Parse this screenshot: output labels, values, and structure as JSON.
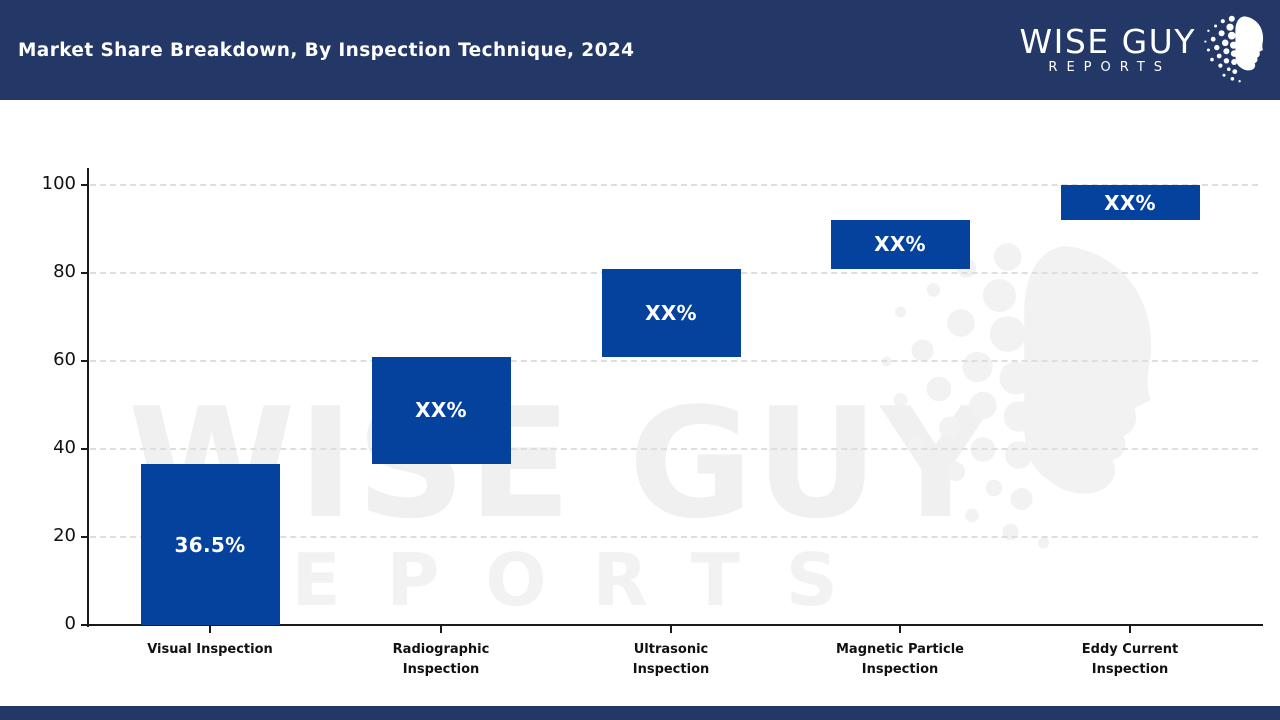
{
  "header": {
    "title": "Market Share Breakdown, By Inspection Technique, 2024",
    "logo": {
      "line1": "WISE GUY",
      "line2": "REPORTS"
    }
  },
  "watermark": {
    "line1": "WISE GUY",
    "line2": "REPORTS"
  },
  "chart_data": {
    "type": "bar",
    "subtype": "waterfall",
    "title": "Market Share Breakdown, By Inspection Technique, 2024",
    "categories": [
      "Visual Inspection",
      "Radiographic Inspection",
      "Ultrasonic Inspection",
      "Magnetic Particle Inspection",
      "Eddy Current Inspection"
    ],
    "segments": [
      {
        "label": "Visual Inspection",
        "start": 0,
        "end": 36.5,
        "value": 36.5,
        "value_label": "36.5%"
      },
      {
        "label": "Radiographic\nInspection",
        "start": 36.5,
        "end": 61,
        "value": 24.5,
        "value_label": "XX%"
      },
      {
        "label": "Ultrasonic\nInspection",
        "start": 61,
        "end": 81,
        "value": 20,
        "value_label": "XX%"
      },
      {
        "label": "Magnetic Particle\nInspection",
        "start": 81,
        "end": 92,
        "value": 11,
        "value_label": "XX%"
      },
      {
        "label": "Eddy Current\nInspection",
        "start": 92,
        "end": 100,
        "value": 8,
        "value_label": "XX%"
      }
    ],
    "yticks": [
      0,
      20,
      40,
      60,
      80,
      100
    ],
    "ylim": [
      0,
      104
    ],
    "xlabel": "",
    "ylabel": "",
    "grid": "dashed-horizontal",
    "legend": "none",
    "bar_color": "#05429d",
    "bar_label_color": "#ffffff"
  },
  "colors": {
    "header_bg": "#233866",
    "footer_bg": "#233866",
    "axis": "#1a1a1a",
    "grid": "#dedede",
    "watermark": "#f0f0f0"
  }
}
